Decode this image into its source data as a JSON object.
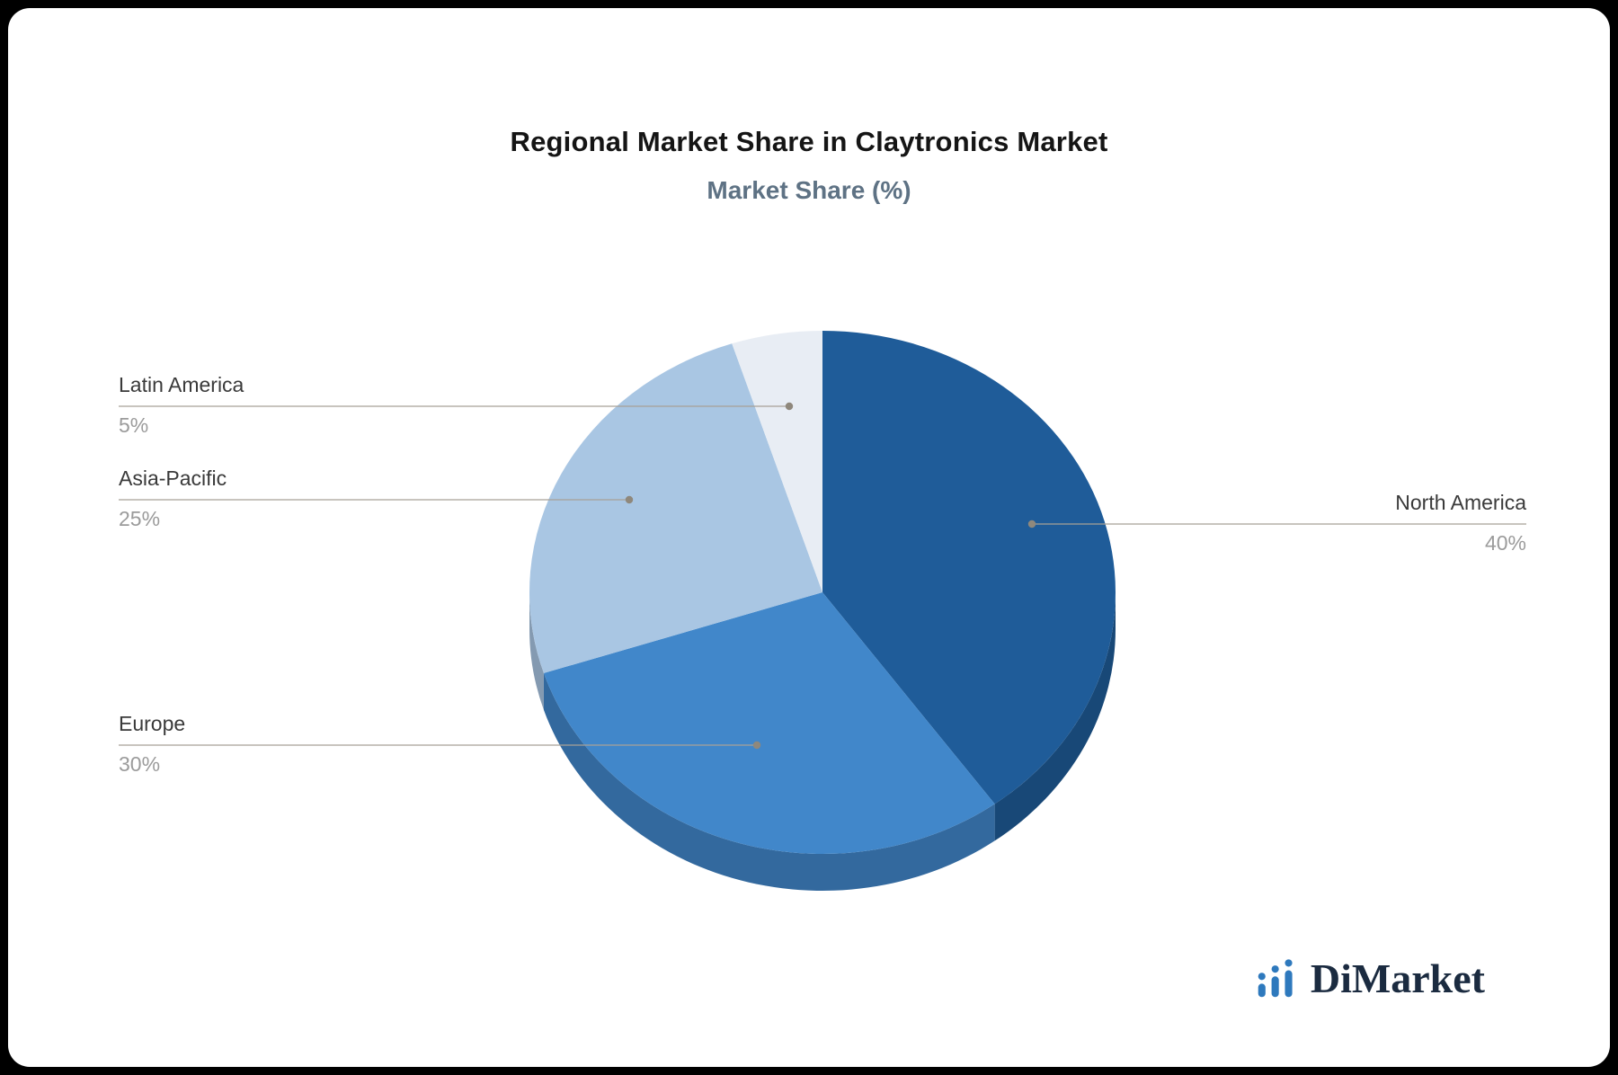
{
  "header": {
    "title": "Regional Market Share in Claytronics Market",
    "subtitle": "Market Share (%)"
  },
  "chart_data": {
    "type": "pie",
    "title": "Regional Market Share in Claytronics Market",
    "subtitle": "Market Share (%)",
    "unit": "%",
    "style": "3d",
    "direction": "clockwise",
    "start_angle_deg": 0,
    "legend_position": "callouts",
    "segments": [
      {
        "label": "North America",
        "value": 40,
        "display": "40%",
        "color": "#1F5C99"
      },
      {
        "label": "Europe",
        "value": 30,
        "display": "30%",
        "color": "#4187CA"
      },
      {
        "label": "Asia-Pacific",
        "value": 25,
        "display": "25%",
        "color": "#A9C6E3"
      },
      {
        "label": "Latin America",
        "value": 5,
        "display": "5%",
        "color": "#E8EDF4"
      }
    ]
  },
  "branding": {
    "logo_text": "DiMarket",
    "logo_icon": "bar-chart-icon",
    "icon_color": "#2E79BD",
    "text_color": "#1B2B40"
  },
  "colors": {
    "title": "#151515",
    "subtitle": "#5E7284",
    "label": "#3A3A3A",
    "value": "#9B9B9B",
    "leader_line": "#A8A196",
    "card_background": "#FFFFFF",
    "frame": "#000000"
  }
}
